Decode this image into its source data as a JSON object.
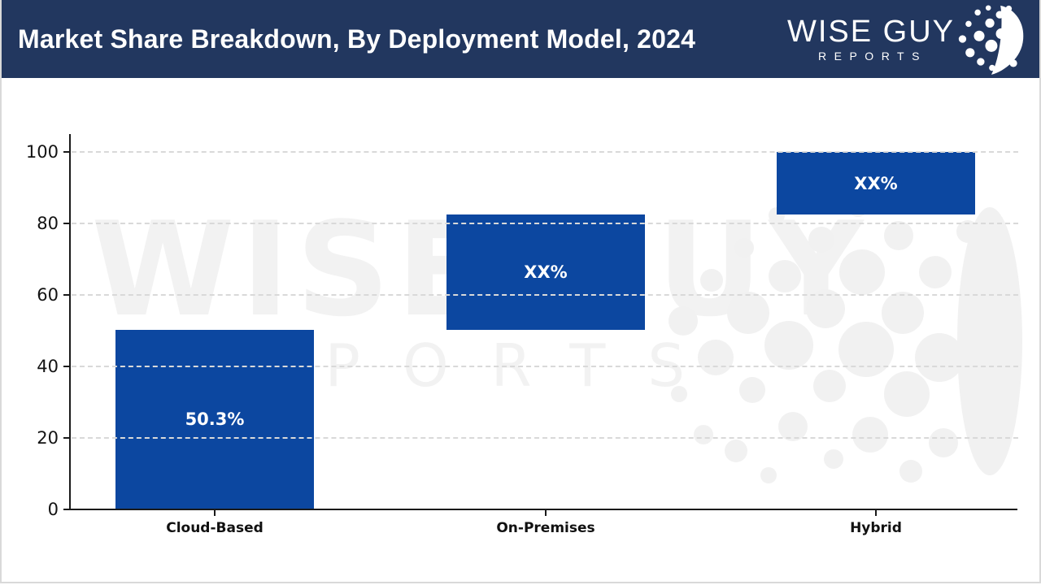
{
  "header": {
    "title": "Market Share Breakdown, By Deployment Model, 2024",
    "logo": {
      "name": "WISE GUY",
      "tagline": "REPORTS"
    }
  },
  "watermark": {
    "line1": "WISE GUY",
    "line2": "REPORTS"
  },
  "chart_data": {
    "type": "bar",
    "subtype": "stacked-waterfall-segments",
    "title": "Market Share Breakdown, By Deployment Model, 2024",
    "categories": [
      "Cloud-Based",
      "On-Premises",
      "Hybrid"
    ],
    "series": [
      {
        "name": "Cloud-Based",
        "label": "50.3%",
        "start": 0,
        "end": 50.3,
        "value": 50.3
      },
      {
        "name": "On-Premises",
        "label": "XX%",
        "start": 50.3,
        "end": 82.5,
        "value": 32.2
      },
      {
        "name": "Hybrid",
        "label": "XX%",
        "start": 82.5,
        "end": 100,
        "value": 17.5
      }
    ],
    "xlabel": "",
    "ylabel": "",
    "ylim": [
      0,
      100
    ],
    "y_ticks": [
      0,
      20,
      40,
      60,
      80,
      100
    ],
    "grid": "horizontal dashed, drawn above bars",
    "legend": "none",
    "colors": {
      "bar": "#0c47a0",
      "bar_label": "#ffffff",
      "grid": "#d9d9d9",
      "axis": "#1a1a1a",
      "header_bg": "#22375f",
      "watermark": "#f2f2f2"
    }
  }
}
